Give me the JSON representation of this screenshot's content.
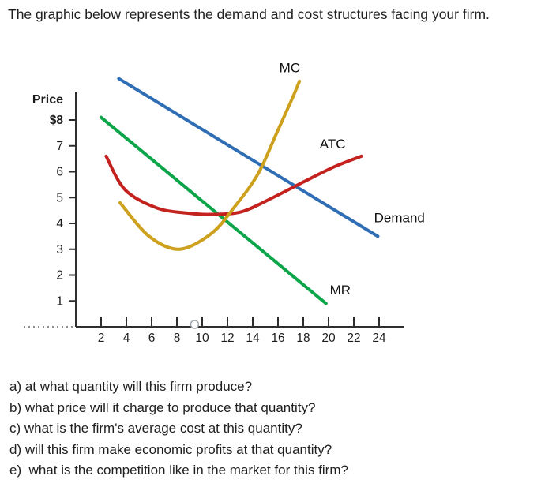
{
  "title": "The graphic below represents the demand and cost structures facing your firm.",
  "questions": [
    "a) at what quantity will this firm produce?",
    "b) what price will it charge to produce that quantity?",
    "c) what is the firm's average cost at this quantity?",
    "d) will this firm make economic profits at that quantity?",
    "e)  what is the competition like in the market for this firm?"
  ],
  "chart_data": {
    "type": "line",
    "title": "",
    "xlabel": "",
    "ylabel": "Price",
    "xlim": [
      0,
      26
    ],
    "ylim": [
      0,
      10
    ],
    "grid": false,
    "x_ticks": [
      2,
      4,
      6,
      8,
      10,
      12,
      14,
      16,
      18,
      20,
      22,
      24
    ],
    "y_ticks": [
      {
        "value": 8,
        "label": "$8",
        "bold": true
      },
      {
        "value": 7,
        "label": "7"
      },
      {
        "value": 6,
        "label": "6"
      },
      {
        "value": 5,
        "label": "5"
      },
      {
        "value": 4,
        "label": "4"
      },
      {
        "value": 3,
        "label": "3"
      },
      {
        "value": 2,
        "label": "2"
      },
      {
        "value": 1,
        "label": "1"
      }
    ],
    "axis_marker": {
      "x": 9.4,
      "shape": "open-circle"
    },
    "series": [
      {
        "name": "Demand",
        "color": "#2f6eb4",
        "style": "straight",
        "points": [
          [
            3.4,
            9.6
          ],
          [
            23.9,
            3.5
          ]
        ],
        "label_pos": [
          23.6,
          4.05
        ]
      },
      {
        "name": "MR",
        "color": "#0da54a",
        "style": "straight",
        "points": [
          [
            2.0,
            8.1
          ],
          [
            19.8,
            0.9
          ]
        ],
        "label_pos": [
          20.1,
          1.25
        ]
      },
      {
        "name": "ATC",
        "color": "#c4221f",
        "style": "smooth",
        "points": [
          [
            2.4,
            6.6
          ],
          [
            3.9,
            5.3
          ],
          [
            6.4,
            4.6
          ],
          [
            8.8,
            4.4
          ],
          [
            10.7,
            4.35
          ],
          [
            13.1,
            4.45
          ],
          [
            15.6,
            5.0
          ],
          [
            18.0,
            5.6
          ],
          [
            20.5,
            6.2
          ],
          [
            22.6,
            6.6
          ]
        ],
        "label_pos": [
          19.3,
          6.9
        ]
      },
      {
        "name": "MC",
        "color": "#cda01d",
        "style": "smooth",
        "points": [
          [
            3.5,
            4.8
          ],
          [
            5.8,
            3.5
          ],
          [
            8.2,
            3.0
          ],
          [
            10.7,
            3.6
          ],
          [
            12.5,
            4.6
          ],
          [
            14.4,
            5.9
          ],
          [
            15.9,
            7.5
          ],
          [
            17.1,
            8.8
          ],
          [
            17.7,
            9.5
          ]
        ],
        "label_pos": [
          16.1,
          9.85
        ]
      }
    ]
  }
}
